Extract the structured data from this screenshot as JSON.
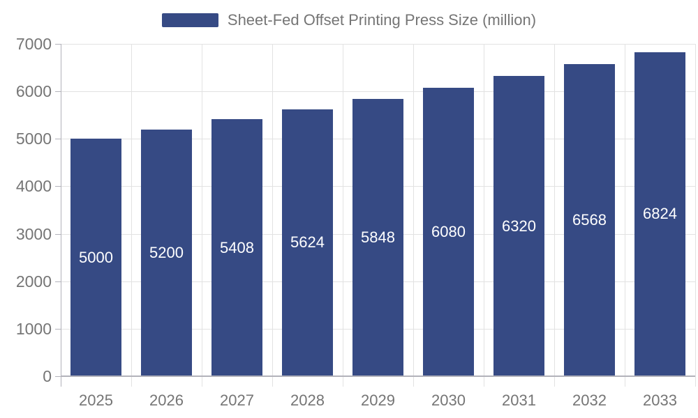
{
  "legend": {
    "label": "Sheet-Fed Offset Printing Press Size (million)"
  },
  "chart_data": {
    "type": "bar",
    "title": "Sheet-Fed Offset Printing Press Size (million)",
    "categories": [
      "2025",
      "2026",
      "2027",
      "2028",
      "2029",
      "2030",
      "2031",
      "2032",
      "2033"
    ],
    "values": [
      5000,
      5200,
      5408,
      5624,
      5848,
      6080,
      6320,
      6568,
      6824
    ],
    "xlabel": "",
    "ylabel": "",
    "ylim": [
      0,
      7000
    ],
    "y_ticks": [
      0,
      1000,
      2000,
      3000,
      4000,
      5000,
      6000,
      7000
    ],
    "grid": true,
    "legend_position": "top-center",
    "value_labels": "inside-center",
    "colors": {
      "bar": "#364a84",
      "value_label": "#ffffff",
      "axis_label": "#757575",
      "legend_label": "#757575",
      "gridline": "#e2e2e2",
      "axis_line": "#b2b2ba",
      "background": "#ffffff"
    }
  }
}
